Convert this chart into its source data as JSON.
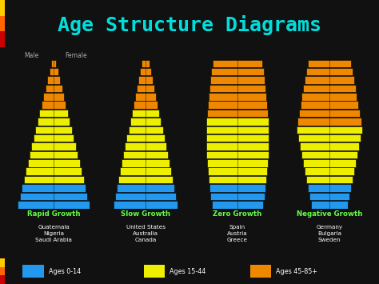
{
  "title": "Age Structure Diagrams",
  "title_color": "#00DDDD",
  "title_fontsize": 18,
  "title_bg": "#0a0a2a",
  "background_color": "#111111",
  "colors": {
    "young": "#2299EE",
    "middle": "#EEEE00",
    "old": "#EE8800"
  },
  "male_label": "Male",
  "female_label": "Female",
  "growth_names": [
    "Rapid Growth",
    "Slow Growth",
    "Zero Growth",
    "Negative Growth"
  ],
  "subtitles": [
    "Guatemala\nNigeria\nSaudi Arabia",
    "United States\nAustralia\nCanada",
    "Spain\nAustria\nGreece",
    "Germany\nBulgaria\nSweden"
  ],
  "pyramid_types": [
    "rapid",
    "slow",
    "zero",
    "negative"
  ],
  "young_layers": [
    3,
    3,
    3,
    3
  ],
  "middle_layers": [
    9,
    9,
    8,
    7
  ],
  "old_layers": [
    6,
    6,
    7,
    8
  ],
  "legend": [
    {
      "label": "Ages 0-14",
      "color": "#2299EE"
    },
    {
      "label": "Ages 15-44",
      "color": "#EEEE00"
    },
    {
      "label": "Ages 45-85+",
      "color": "#EE8800"
    }
  ],
  "left_strip_colors": [
    "#CC0000",
    "#FF6600",
    "#FFCC00"
  ],
  "figsize": [
    4.74,
    3.55
  ],
  "dpi": 100
}
